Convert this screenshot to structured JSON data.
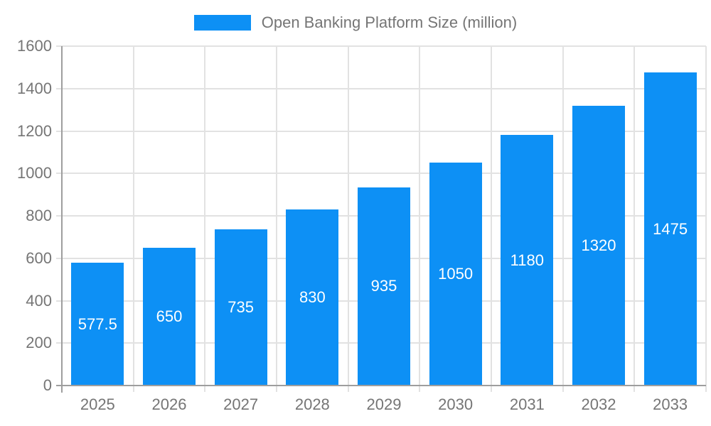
{
  "chart_data": {
    "type": "bar",
    "title": "Open Banking Platform Size (million)",
    "categories": [
      "2025",
      "2026",
      "2027",
      "2028",
      "2029",
      "2030",
      "2031",
      "2032",
      "2033"
    ],
    "values": [
      577.5,
      650,
      735,
      830,
      935,
      1050,
      1180,
      1320,
      1475
    ],
    "value_labels": [
      "577.5",
      "650",
      "735",
      "830",
      "935",
      "1050",
      "1180",
      "1320",
      "1475"
    ],
    "xlabel": "",
    "ylabel": "",
    "ylim": [
      0,
      1600
    ],
    "yticks": [
      0,
      200,
      400,
      600,
      800,
      1000,
      1200,
      1400,
      1600
    ],
    "grid": "on",
    "legend_position": "top-center",
    "colors": {
      "bar": "#0d90f5",
      "bar_value_text": "#ffffff",
      "axis_line": "#9e9e9e",
      "gridline": "#e2e2e2",
      "tick_text": "#757575",
      "legend_text": "#757575",
      "background": "#ffffff"
    }
  }
}
